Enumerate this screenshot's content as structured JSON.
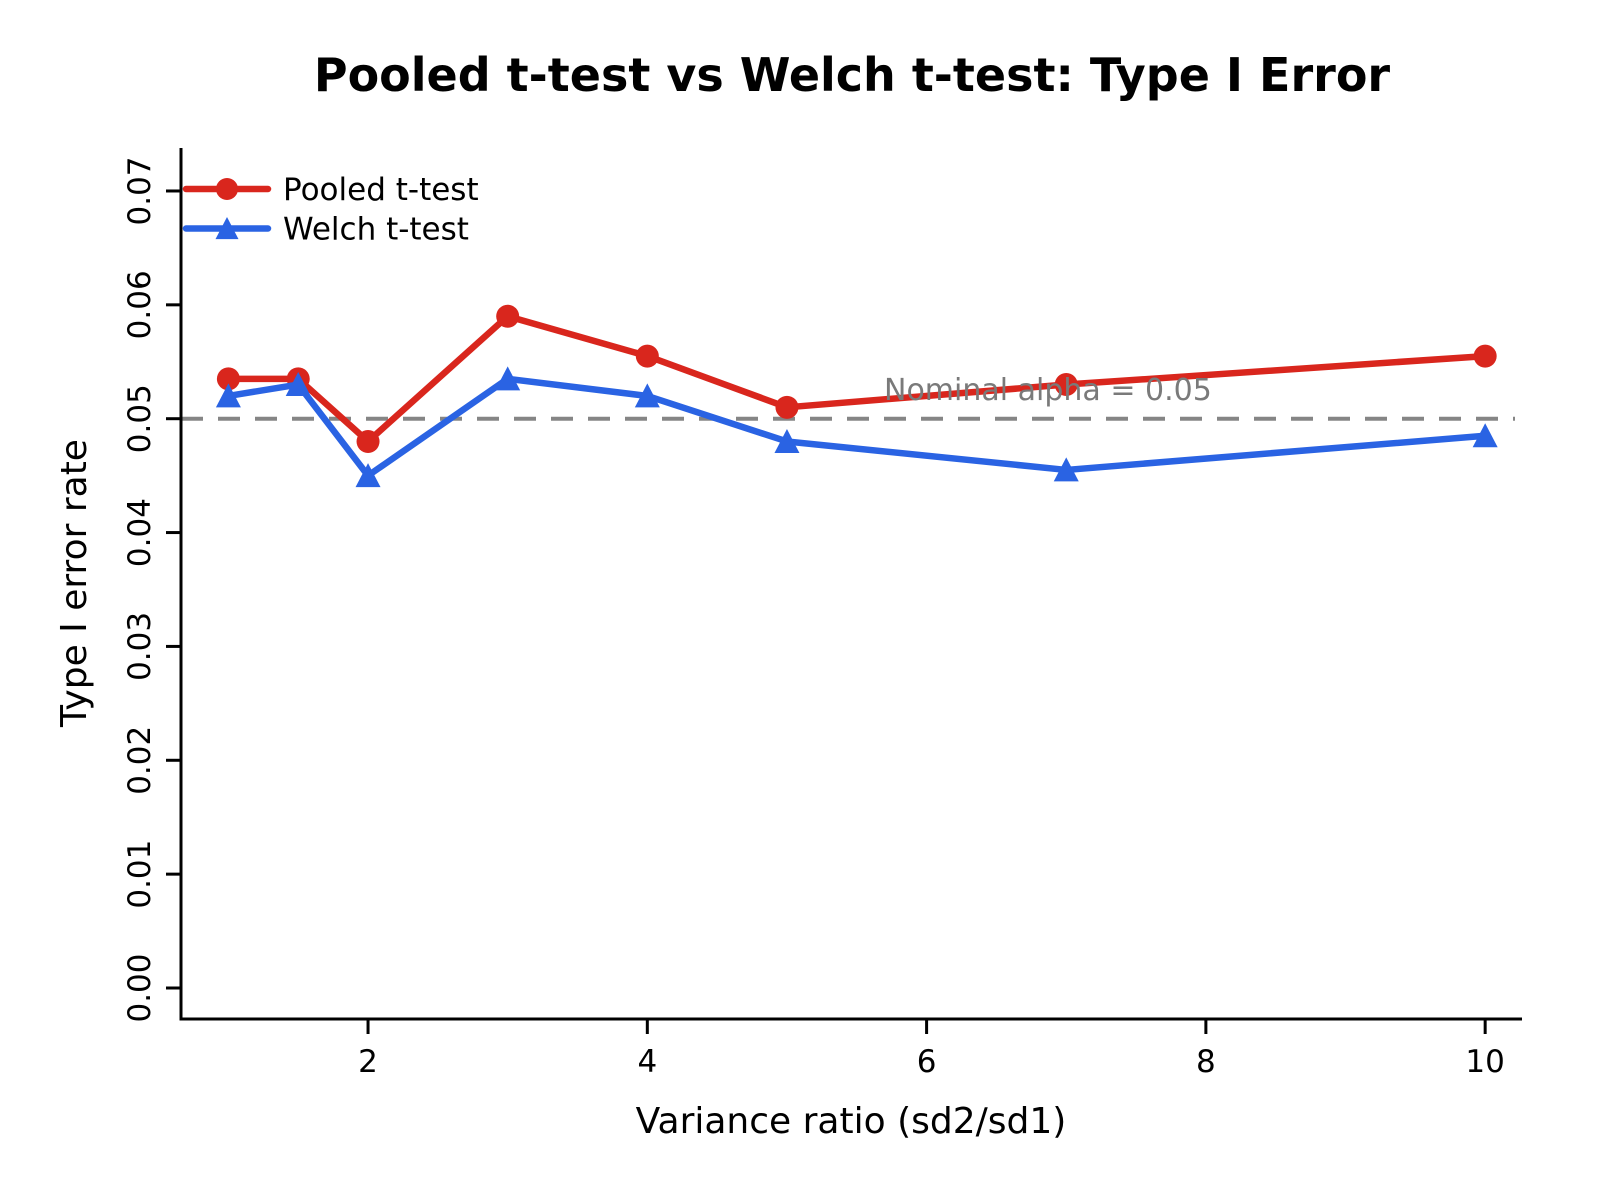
{
  "chart_data": {
    "type": "line",
    "title": "Pooled t-test vs Welch t-test: Type I Error",
    "xlabel": "Variance ratio (sd2/sd1)",
    "ylabel": "Type I error rate",
    "x": [
      1,
      1.5,
      2,
      3,
      4,
      5,
      7,
      10
    ],
    "series": [
      {
        "name": "Pooled t-test",
        "color": "#d9261d",
        "marker": "circle",
        "values": [
          0.0535,
          0.0535,
          0.048,
          0.059,
          0.0555,
          0.051,
          0.053,
          0.0555
        ]
      },
      {
        "name": "Welch t-test",
        "color": "#2a63e3",
        "marker": "triangle",
        "values": [
          0.052,
          0.053,
          0.045,
          0.0535,
          0.052,
          0.048,
          0.0455,
          0.0485
        ]
      }
    ],
    "reference_line": {
      "y": 0.05,
      "label": "Nominal alpha = 0.05",
      "style": "dashed",
      "color": "#858585"
    },
    "x_ticks": [
      2,
      4,
      6,
      8,
      10
    ],
    "y_ticks": [
      0.0,
      0.01,
      0.02,
      0.03,
      0.04,
      0.05,
      0.06,
      0.07
    ],
    "y_tick_format": "0.00",
    "xlim": [
      0.66,
      10.27
    ],
    "ylim": [
      -0.003,
      0.073
    ],
    "legend_position": "top-left",
    "grid": false
  },
  "colors": {
    "pooled_red": "#d9261d",
    "welch_blue": "#2a63e3",
    "refline_gray": "#858585",
    "annotation_gray": "#7a7a7a",
    "axis_black": "#000000",
    "background": "#ffffff"
  }
}
